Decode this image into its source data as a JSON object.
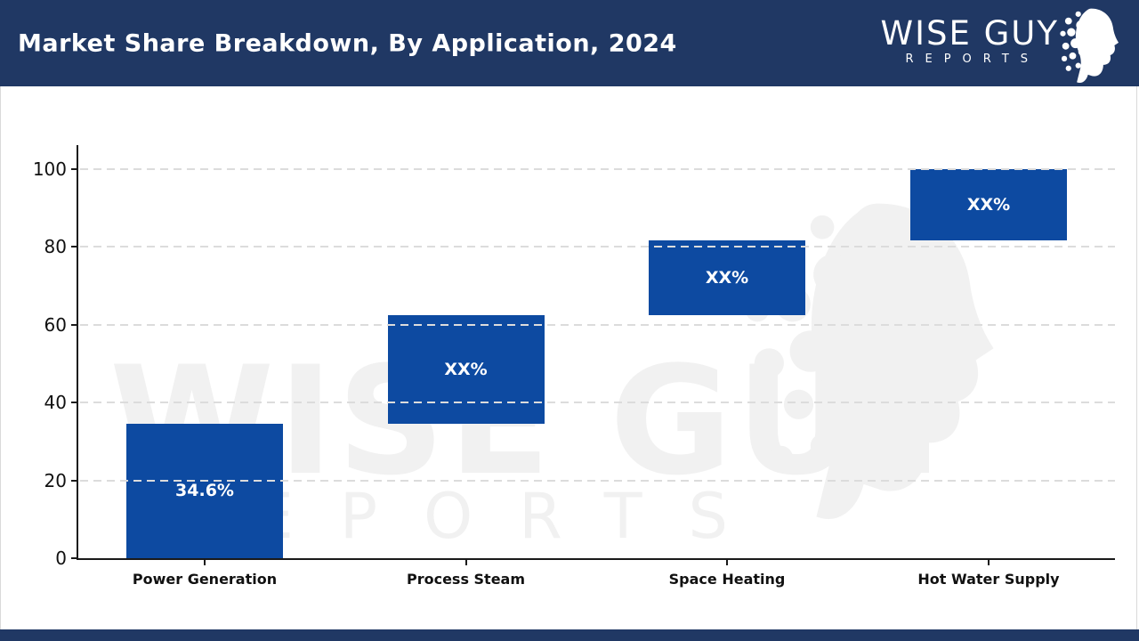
{
  "header": {
    "title": "Market Share Breakdown, By Application, 2024",
    "logo": {
      "line1": "WISE GUY",
      "line2": "REPORTS"
    }
  },
  "watermark": {
    "line1": "WISE GUY",
    "line2": "REPORTS"
  },
  "footer": {
    "present": true
  },
  "colors": {
    "header_bg": "#203864",
    "footer_bg": "#203864",
    "bar": "#0d4aa1",
    "bar_label_text": "#ffffff",
    "grid": "#dcdcdc",
    "axis": "#1a1a1a",
    "tick_text": "#111111",
    "watermark": "#f1f1f1"
  },
  "chart_data": {
    "type": "bar",
    "subtype": "waterfall",
    "title": "Market Share Breakdown, By Application, 2024",
    "categories": [
      "Power Generation",
      "Process Steam",
      "Space Heating",
      "Hot Water Supply"
    ],
    "segments": [
      {
        "category": "Power Generation",
        "start": 0,
        "end": 34.6,
        "label": "34.6%"
      },
      {
        "category": "Process Steam",
        "start": 34.6,
        "end": 62.3,
        "label": "XX%"
      },
      {
        "category": "Space Heating",
        "start": 62.3,
        "end": 81.7,
        "label": "XX%"
      },
      {
        "category": "Hot Water Supply",
        "start": 81.7,
        "end": 100,
        "label": "XX%"
      }
    ],
    "xlabel": "",
    "ylabel": "",
    "ylim": [
      0,
      100
    ],
    "yticks": [
      0,
      20,
      40,
      60,
      80,
      100
    ],
    "grid": "horizontal dashed, drawn above bars",
    "legend": "none"
  }
}
